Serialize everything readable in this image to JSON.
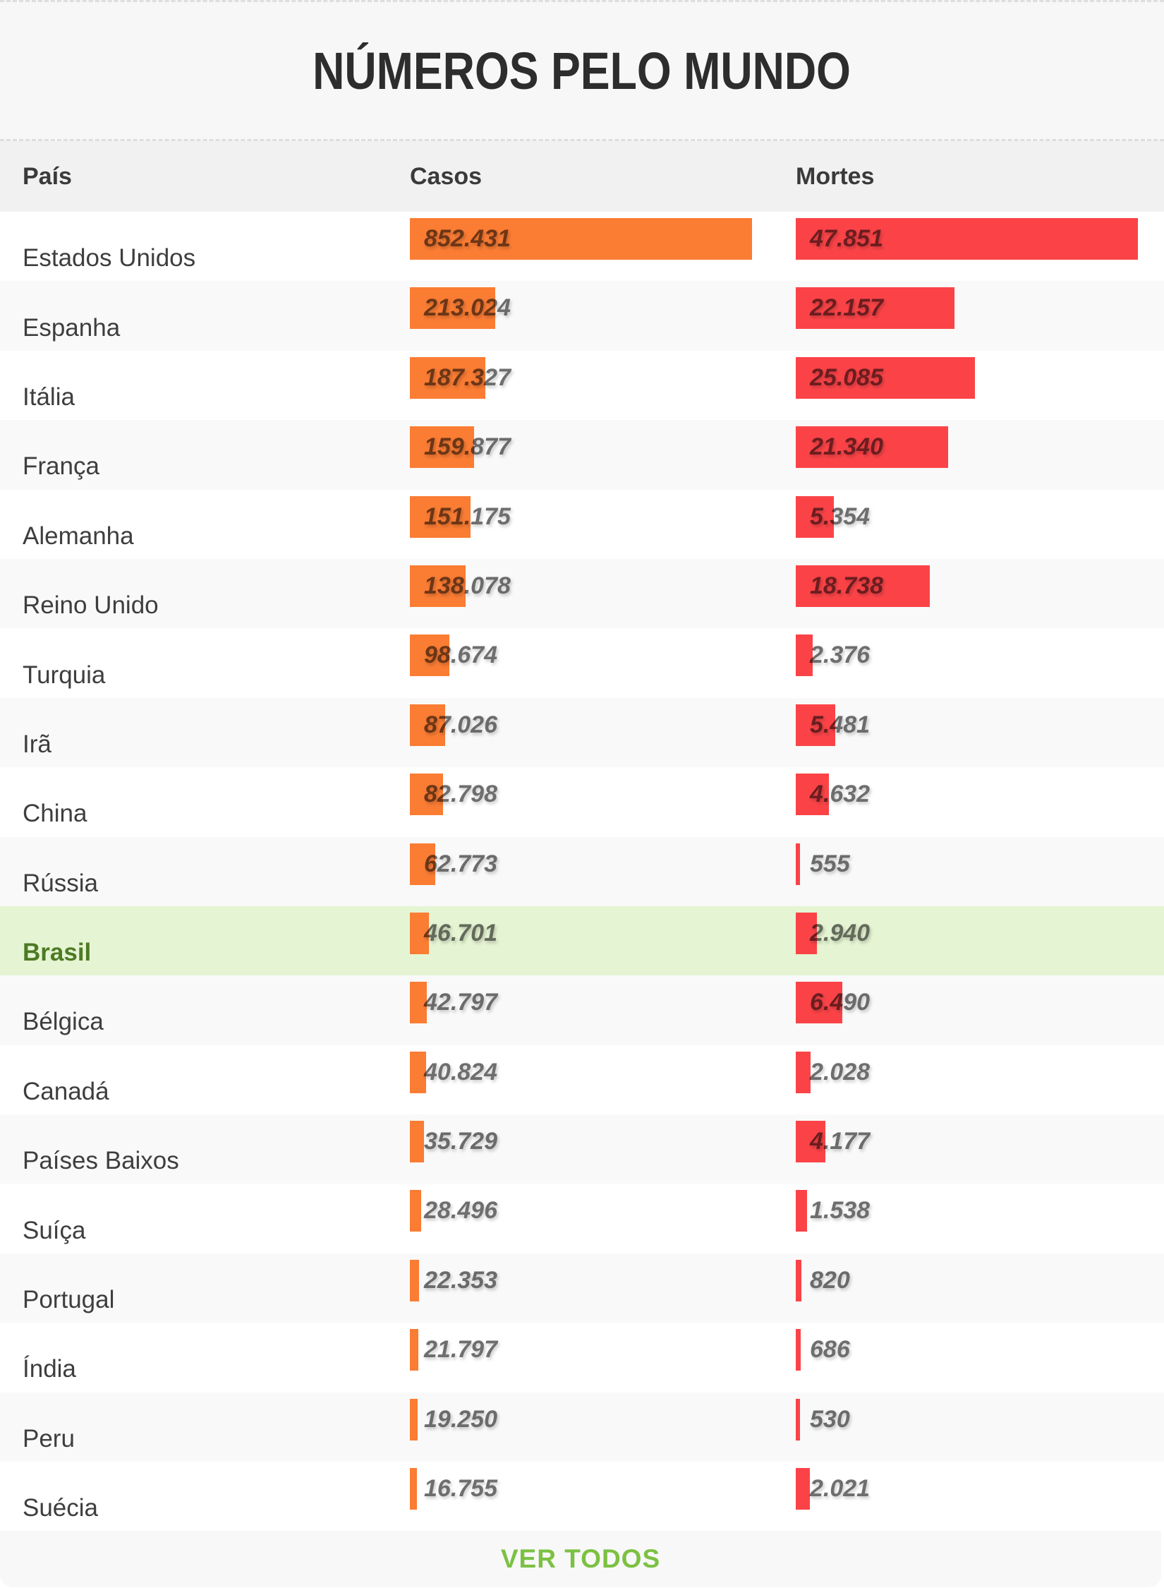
{
  "header": {
    "title": "NÚMEROS PELO MUNDO"
  },
  "table": {
    "columns": {
      "country": "País",
      "cases": "Casos",
      "deaths": "Mortes"
    },
    "rows": [
      {
        "country": "Estados Unidos",
        "cases": 852431,
        "cases_label": "852.431",
        "deaths": 47851,
        "deaths_label": "47.851",
        "highlight": false
      },
      {
        "country": "Espanha",
        "cases": 213024,
        "cases_label": "213.024",
        "deaths": 22157,
        "deaths_label": "22.157",
        "highlight": false
      },
      {
        "country": "Itália",
        "cases": 187327,
        "cases_label": "187.327",
        "deaths": 25085,
        "deaths_label": "25.085",
        "highlight": false
      },
      {
        "country": "França",
        "cases": 159877,
        "cases_label": "159.877",
        "deaths": 21340,
        "deaths_label": "21.340",
        "highlight": false
      },
      {
        "country": "Alemanha",
        "cases": 151175,
        "cases_label": "151.175",
        "deaths": 5354,
        "deaths_label": "5.354",
        "highlight": false
      },
      {
        "country": "Reino Unido",
        "cases": 138078,
        "cases_label": "138.078",
        "deaths": 18738,
        "deaths_label": "18.738",
        "highlight": false
      },
      {
        "country": "Turquia",
        "cases": 98674,
        "cases_label": "98.674",
        "deaths": 2376,
        "deaths_label": "2.376",
        "highlight": false
      },
      {
        "country": "Irã",
        "cases": 87026,
        "cases_label": "87.026",
        "deaths": 5481,
        "deaths_label": "5.481",
        "highlight": false
      },
      {
        "country": "China",
        "cases": 82798,
        "cases_label": "82.798",
        "deaths": 4632,
        "deaths_label": "4.632",
        "highlight": false
      },
      {
        "country": "Rússia",
        "cases": 62773,
        "cases_label": "62.773",
        "deaths": 555,
        "deaths_label": "555",
        "highlight": false
      },
      {
        "country": "Brasil",
        "cases": 46701,
        "cases_label": "46.701",
        "deaths": 2940,
        "deaths_label": "2.940",
        "highlight": true
      },
      {
        "country": "Bélgica",
        "cases": 42797,
        "cases_label": "42.797",
        "deaths": 6490,
        "deaths_label": "6.490",
        "highlight": false
      },
      {
        "country": "Canadá",
        "cases": 40824,
        "cases_label": "40.824",
        "deaths": 2028,
        "deaths_label": "2.028",
        "highlight": false
      },
      {
        "country": "Países Baixos",
        "cases": 35729,
        "cases_label": "35.729",
        "deaths": 4177,
        "deaths_label": "4.177",
        "highlight": false
      },
      {
        "country": "Suíça",
        "cases": 28496,
        "cases_label": "28.496",
        "deaths": 1538,
        "deaths_label": "1.538",
        "highlight": false
      },
      {
        "country": "Portugal",
        "cases": 22353,
        "cases_label": "22.353",
        "deaths": 820,
        "deaths_label": "820",
        "highlight": false
      },
      {
        "country": "Índia",
        "cases": 21797,
        "cases_label": "21.797",
        "deaths": 686,
        "deaths_label": "686",
        "highlight": false
      },
      {
        "country": "Peru",
        "cases": 19250,
        "cases_label": "19.250",
        "deaths": 530,
        "deaths_label": "530",
        "highlight": false
      },
      {
        "country": "Suécia",
        "cases": 16755,
        "cases_label": "16.755",
        "deaths": 2021,
        "deaths_label": "2.021",
        "highlight": false
      }
    ]
  },
  "footer": {
    "link_label": "VER TODOS"
  },
  "colors": {
    "cases_bar": "#fb7c33",
    "deaths_bar": "#fb4347",
    "highlight_row_bg": "#e5f5d3",
    "highlight_text": "#4e7a24",
    "link_green": "#7cc142",
    "value_text": "#6e6e6e",
    "title_text": "#2d2d2d"
  },
  "chart_data": {
    "type": "bar",
    "orientation": "horizontal",
    "title": "NÚMEROS PELO MUNDO",
    "categories": [
      "Estados Unidos",
      "Espanha",
      "Itália",
      "França",
      "Alemanha",
      "Reino Unido",
      "Turquia",
      "Irã",
      "China",
      "Rússia",
      "Brasil",
      "Bélgica",
      "Canadá",
      "Países Baixos",
      "Suíça",
      "Portugal",
      "Índia",
      "Peru",
      "Suécia"
    ],
    "series": [
      {
        "name": "Casos",
        "color": "#fb7c33",
        "values": [
          852431,
          213024,
          187327,
          159877,
          151175,
          138078,
          98674,
          87026,
          82798,
          62773,
          46701,
          42797,
          40824,
          35729,
          28496,
          22353,
          21797,
          19250,
          16755
        ]
      },
      {
        "name": "Mortes",
        "color": "#fb4347",
        "values": [
          47851,
          22157,
          25085,
          21340,
          5354,
          18738,
          2376,
          5481,
          4632,
          555,
          2940,
          6490,
          2028,
          4177,
          1538,
          820,
          686,
          530,
          2021
        ]
      }
    ],
    "highlighted_category": "Brasil",
    "bar_scaling": "each series scaled independently to its own maximum",
    "xlim_cases": [
      0,
      852431
    ],
    "xlim_deaths": [
      0,
      47851
    ],
    "number_format": "pt-BR dot thousands separator",
    "grid": false,
    "legend_position": "column headers"
  }
}
